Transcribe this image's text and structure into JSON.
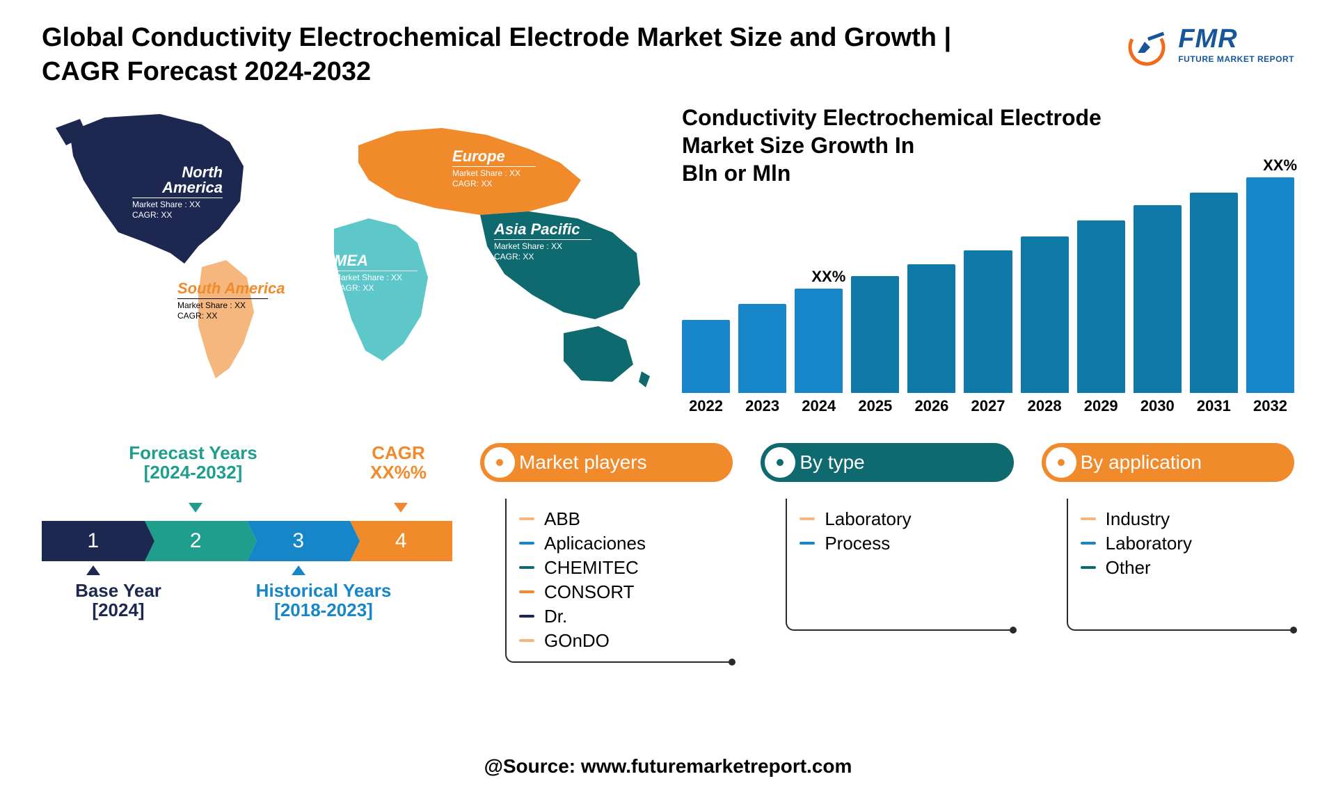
{
  "title_line1": "Global Conductivity Electrochemical Electrode Market Size and Growth |",
  "title_line2": " CAGR Forecast 2024-2032",
  "logo": {
    "text": "FMR",
    "sub": "FUTURE MARKET REPORT"
  },
  "colors": {
    "navy": "#1c2850",
    "teal": "#1f9e8e",
    "blue": "#1786c8",
    "orange": "#f08a2b",
    "cyan": "#5ec7c9",
    "tealDark": "#0f6a6f",
    "orangeLight": "#f5b77e",
    "logoOrange": "#f26a1b",
    "logoBlue": "#17569a",
    "textBlack": "#000000"
  },
  "map": {
    "regions": [
      {
        "id": "na",
        "name": "North\nAmerica",
        "share": "Market Share : XX",
        "cagr": "CAGR: XX",
        "nameColor": "#ffffff",
        "metaColor": "#ffffff"
      },
      {
        "id": "sa",
        "name": "South America",
        "share": "Market Share : XX",
        "cagr": "CAGR: XX",
        "nameColor": "#f08a2b",
        "metaColor": "#000000"
      },
      {
        "id": "mea",
        "name": "MEA",
        "share": "Market Share : XX",
        "cagr": "CAGR: XX",
        "nameColor": "#ffffff",
        "metaColor": "#ffffff"
      },
      {
        "id": "eu",
        "name": "Europe",
        "share": "Market Share : XX",
        "cagr": "CAGR: XX",
        "nameColor": "#ffffff",
        "metaColor": "#ffffff"
      },
      {
        "id": "ap",
        "name": "Asia Pacific",
        "share": "Market Share : XX",
        "cagr": "CAGR: XX",
        "nameColor": "#ffffff",
        "metaColor": "#ffffff"
      }
    ]
  },
  "chart": {
    "title_l1": "Conductivity Electrochemical Electrode",
    "title_l2": "Market Size Growth In",
    "title_l3": "Bln or Mln",
    "type": "bar",
    "years": [
      "2022",
      "2023",
      "2024",
      "2025",
      "2026",
      "2027",
      "2028",
      "2029",
      "2030",
      "2031",
      "2032"
    ],
    "heights": [
      105,
      128,
      150,
      168,
      185,
      205,
      225,
      248,
      270,
      288,
      310
    ],
    "bar_colors": [
      "#1786c8",
      "#1786c8",
      "#1786c8",
      "#0f7aa8",
      "#0f7aa8",
      "#0f7aa8",
      "#0f7aa8",
      "#0f7aa8",
      "#0f7aa8",
      "#0f7aa8",
      "#1786c8"
    ],
    "annotations": [
      {
        "index": 2,
        "text": "XX%"
      },
      {
        "index": 10,
        "text": "XX%"
      }
    ],
    "label_fontsize": 22,
    "label_fontweight": "700"
  },
  "timeline": {
    "top": [
      {
        "idx": 1,
        "label": "Forecast Years",
        "sub": "[2024-2032]",
        "color": "#1f9e8e"
      },
      {
        "idx": 3,
        "label": "CAGR",
        "sub": "XX%%",
        "color": "#f08a2b"
      }
    ],
    "segments": [
      {
        "n": "1",
        "color": "#1c2850"
      },
      {
        "n": "2",
        "color": "#1f9e8e"
      },
      {
        "n": "3",
        "color": "#1786c8"
      },
      {
        "n": "4",
        "color": "#f08a2b"
      }
    ],
    "bottom": [
      {
        "idx": 0,
        "label": "Base Year",
        "sub": "[2024]",
        "color": "#1c2850"
      },
      {
        "idx": 2,
        "label": "Historical Years",
        "sub": "[2018-2023]",
        "color": "#1786c8"
      }
    ]
  },
  "pills": [
    {
      "title": "Market players",
      "color": "#f08a2b",
      "items": [
        {
          "label": "ABB",
          "mcolor": "#f5b77e"
        },
        {
          "label": "Aplicaciones",
          "mcolor": "#1786c8"
        },
        {
          "label": "CHEMITEC",
          "mcolor": "#0f6a6f"
        },
        {
          "label": "CONSORT",
          "mcolor": "#f08a2b"
        },
        {
          "label": "Dr.",
          "mcolor": "#1c2850"
        },
        {
          "label": "GOnDO",
          "mcolor": "#f5b77e"
        }
      ]
    },
    {
      "title": "By type",
      "color": "#0f6a6f",
      "items": [
        {
          "label": "Laboratory",
          "mcolor": "#f5b77e"
        },
        {
          "label": "Process",
          "mcolor": "#1786c8"
        }
      ]
    },
    {
      "title": "By application",
      "color": "#f08a2b",
      "items": [
        {
          "label": "Industry",
          "mcolor": "#f5b77e"
        },
        {
          "label": "Laboratory",
          "mcolor": "#1786c8"
        },
        {
          "label": "Other",
          "mcolor": "#0f6a6f"
        }
      ]
    }
  ],
  "source": "@Source: www.futuremarketreport.com"
}
